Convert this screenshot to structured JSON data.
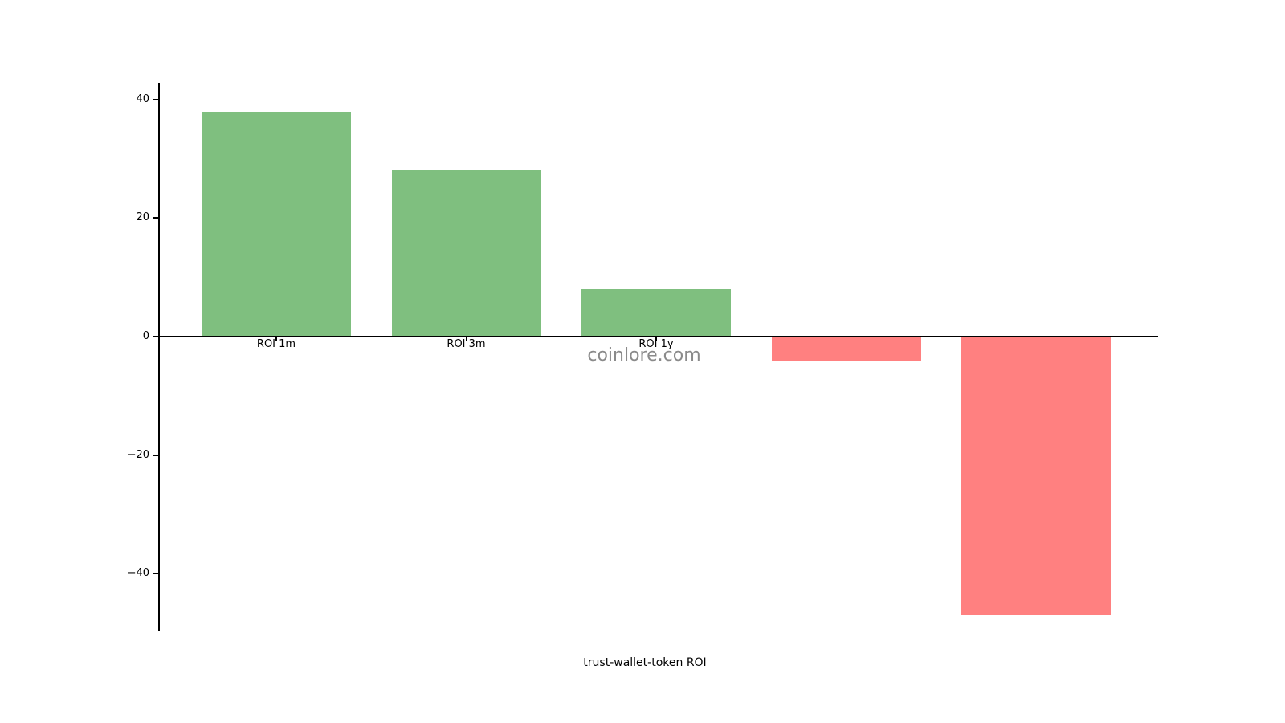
{
  "chart_data": {
    "type": "bar",
    "title": "",
    "xlabel": "trust-wallet-token ROI",
    "ylabel": "",
    "watermark": "coinlore.com",
    "categories": [
      "ROI 1m",
      "ROI 3m",
      "ROI 1y",
      "",
      ""
    ],
    "values": [
      38,
      28,
      8,
      -4,
      -47
    ],
    "yticks": [
      40,
      20,
      0,
      -20,
      -40
    ],
    "ylim": [
      -49.6,
      42.8
    ],
    "grid": false,
    "legend_position": "none",
    "colors": {
      "positive": "#7fbf7f",
      "negative": "#ff8080",
      "axis": "#000000",
      "tick_text": "#000000",
      "watermark": "#8a8a8a",
      "background": "#ffffff"
    }
  }
}
